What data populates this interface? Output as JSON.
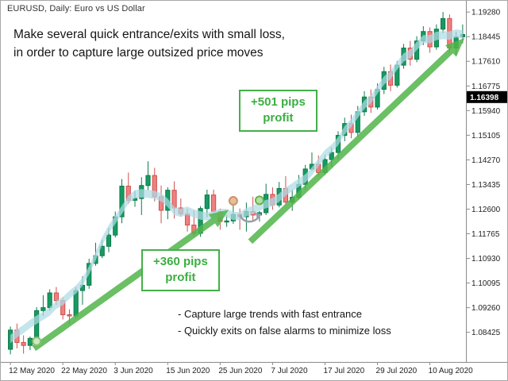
{
  "header": {
    "symbol_label": "EURUSD, Daily:  Euro vs US Dollar"
  },
  "annotations": {
    "headline": {
      "line1": "Make several quick entrance/exits with small loss,",
      "line2": "in order to capture large outsized price moves"
    },
    "profit_501": {
      "line1": "+501 pips",
      "line2": "profit"
    },
    "profit_360": {
      "line1": "+360 pips",
      "line2": "profit"
    },
    "notes": {
      "line1": "- Capture large trends with fast entrance",
      "line2": "- Quickly exits on false alarms to minimize loss"
    }
  },
  "chart_data": {
    "type": "candlestick",
    "title": "EURUSD Daily",
    "ylim": [
      1.0742,
      1.195
    ],
    "current_price": 1.16398,
    "y_ticks": [
      1.1928,
      1.18445,
      1.1761,
      1.16775,
      1.1594,
      1.15105,
      1.1427,
      1.13435,
      1.126,
      1.11765,
      1.1093,
      1.10095,
      1.0926,
      1.08425
    ],
    "x_labels": [
      "12 May 2020",
      "22 May 2020",
      "3 Jun 2020",
      "15 Jun 2020",
      "25 Jun 2020",
      "7 Jul 2020",
      "17 Jul 2020",
      "29 Jul 2020",
      "10 Aug 2020"
    ],
    "x_label_indices": [
      0,
      8,
      16,
      24,
      32,
      40,
      48,
      56,
      64
    ],
    "candles": [
      [
        1.0785,
        1.0862,
        1.0768,
        1.085
      ],
      [
        1.085,
        1.0872,
        1.0788,
        1.0808
      ],
      [
        1.0808,
        1.0832,
        1.077,
        1.0798
      ],
      [
        1.0798,
        1.0828,
        1.0782,
        1.0822
      ],
      [
        1.0822,
        1.0928,
        1.0812,
        1.0916
      ],
      [
        1.0916,
        1.0968,
        1.0898,
        1.0926
      ],
      [
        1.0926,
        1.0988,
        1.0916,
        1.0976
      ],
      [
        1.0976,
        1.0996,
        1.0934,
        1.095
      ],
      [
        1.095,
        1.0962,
        1.0886,
        1.0902
      ],
      [
        1.0902,
        1.092,
        1.087,
        1.0898
      ],
      [
        1.0898,
        1.0996,
        1.089,
        1.0984
      ],
      [
        1.0984,
        1.1032,
        1.0936,
        1.1002
      ],
      [
        1.1002,
        1.1092,
        1.099,
        1.1076
      ],
      [
        1.1076,
        1.1146,
        1.1068,
        1.1102
      ],
      [
        1.1102,
        1.1156,
        1.1094,
        1.1134
      ],
      [
        1.1134,
        1.1196,
        1.1114,
        1.1172
      ],
      [
        1.1172,
        1.1252,
        1.1164,
        1.1234
      ],
      [
        1.1234,
        1.1362,
        1.1212,
        1.1338
      ],
      [
        1.1338,
        1.1384,
        1.1278,
        1.129
      ],
      [
        1.129,
        1.1322,
        1.1268,
        1.1296
      ],
      [
        1.1296,
        1.1368,
        1.124,
        1.134
      ],
      [
        1.134,
        1.1422,
        1.1324,
        1.1374
      ],
      [
        1.1374,
        1.14,
        1.1286,
        1.1302
      ],
      [
        1.1302,
        1.134,
        1.1212,
        1.1256
      ],
      [
        1.1256,
        1.1334,
        1.1226,
        1.1324
      ],
      [
        1.1324,
        1.1354,
        1.1228,
        1.1264
      ],
      [
        1.1264,
        1.1296,
        1.1234,
        1.1244
      ],
      [
        1.1244,
        1.1262,
        1.1184,
        1.1206
      ],
      [
        1.1206,
        1.1256,
        1.1168,
        1.1178
      ],
      [
        1.1178,
        1.127,
        1.1166,
        1.1262
      ],
      [
        1.1262,
        1.1326,
        1.1232,
        1.1308
      ],
      [
        1.1308,
        1.1326,
        1.1248,
        1.1252
      ],
      [
        1.1252,
        1.1262,
        1.119,
        1.1218
      ],
      [
        1.1218,
        1.124,
        1.12,
        1.122
      ],
      [
        1.122,
        1.1288,
        1.121,
        1.1242
      ],
      [
        1.1242,
        1.1262,
        1.119,
        1.1234
      ],
      [
        1.1234,
        1.1282,
        1.1184,
        1.1252
      ],
      [
        1.1252,
        1.1302,
        1.1222,
        1.124
      ],
      [
        1.124,
        1.1254,
        1.1218,
        1.1248
      ],
      [
        1.1248,
        1.1346,
        1.124,
        1.131
      ],
      [
        1.131,
        1.1334,
        1.1258,
        1.1274
      ],
      [
        1.1274,
        1.1352,
        1.1266,
        1.133
      ],
      [
        1.133,
        1.1372,
        1.1276,
        1.1284
      ],
      [
        1.1284,
        1.1326,
        1.1254,
        1.13
      ],
      [
        1.13,
        1.1376,
        1.1292,
        1.1344
      ],
      [
        1.1344,
        1.141,
        1.1324,
        1.1396
      ],
      [
        1.1396,
        1.1452,
        1.139,
        1.1412
      ],
      [
        1.1412,
        1.1442,
        1.137,
        1.1384
      ],
      [
        1.1384,
        1.1444,
        1.1376,
        1.1428
      ],
      [
        1.1428,
        1.147,
        1.1402,
        1.1452
      ],
      [
        1.1452,
        1.1524,
        1.143,
        1.151
      ],
      [
        1.151,
        1.157,
        1.149,
        1.155
      ],
      [
        1.155,
        1.158,
        1.15,
        1.152
      ],
      [
        1.152,
        1.161,
        1.1506,
        1.159
      ],
      [
        1.159,
        1.166,
        1.1576,
        1.164
      ],
      [
        1.164,
        1.1666,
        1.1586,
        1.1606
      ],
      [
        1.1606,
        1.1686,
        1.1598,
        1.1666
      ],
      [
        1.1666,
        1.1742,
        1.165,
        1.1726
      ],
      [
        1.1726,
        1.175,
        1.166,
        1.168
      ],
      [
        1.168,
        1.1762,
        1.1672,
        1.1748
      ],
      [
        1.1748,
        1.182,
        1.1736,
        1.1806
      ],
      [
        1.1806,
        1.183,
        1.1746,
        1.1768
      ],
      [
        1.1768,
        1.1846,
        1.1758,
        1.183
      ],
      [
        1.183,
        1.188,
        1.1816,
        1.1862
      ],
      [
        1.1862,
        1.1876,
        1.179,
        1.181
      ],
      [
        1.181,
        1.1886,
        1.18,
        1.187
      ],
      [
        1.187,
        1.1928,
        1.1856,
        1.1906
      ],
      [
        1.1906,
        1.192,
        1.179,
        1.1806
      ],
      [
        1.1806,
        1.1862,
        1.1782,
        1.1844
      ],
      [
        1.1844,
        1.1886,
        1.1822,
        1.1852
      ]
    ],
    "band": {
      "window": 3,
      "half_width": 0.0014,
      "color": "#aedbe4",
      "opacity": 0.72
    },
    "arrows": [
      {
        "from": [
          3.6,
          1.0788
        ],
        "to": [
          33.3,
          1.1258
        ]
      },
      {
        "from": [
          36.6,
          1.115
        ],
        "to": [
          69.3,
          1.184
        ]
      }
    ],
    "markers": [
      {
        "idx": 4,
        "price": 1.0812,
        "fill": "#cde9c2",
        "stroke": "#86c06a",
        "name": "entry-marker-green"
      },
      {
        "idx": 34,
        "price": 1.1288,
        "fill": "#e9bd97",
        "stroke": "#c9946a",
        "name": "exit-marker-orange"
      },
      {
        "idx": 38,
        "price": 1.129,
        "fill": "#aee2a4",
        "stroke": "#6ab04c",
        "name": "entry-marker-green-2"
      }
    ],
    "curved_arrow": {
      "idx": 36.5,
      "price": 1.1232,
      "color": "#98a0a8"
    },
    "colors": {
      "up_fill": "#169b62",
      "up_stroke": "#0d7a4a",
      "down_fill": "#ef8080",
      "down_stroke": "#cf4f4f",
      "arrow": "#52b54a",
      "axis": "#8a8a8a",
      "tick_text": "#222222",
      "price_tag_bg": "#000000",
      "price_tag_text": "#ffffff"
    }
  }
}
